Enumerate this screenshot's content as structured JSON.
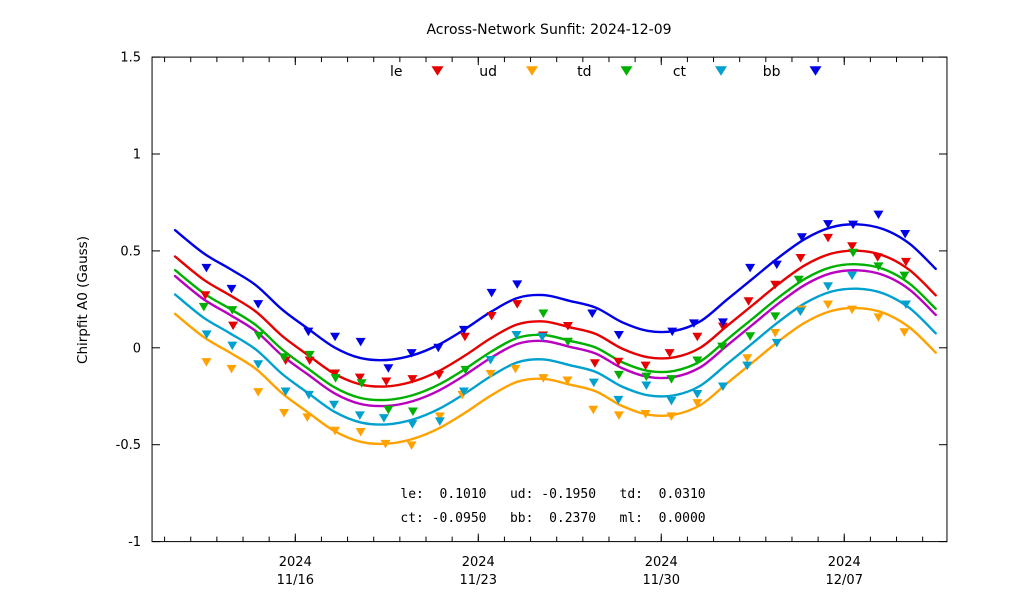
{
  "chart_data": {
    "type": "scatter+line",
    "title": "Across-Network Sunfit: 2024-12-09",
    "ylabel": "Chirpfit A0 (Gauss)",
    "ylim": [
      -1,
      1.5
    ],
    "yticks": [
      "-1",
      "-0.5",
      "0",
      "0.5",
      "1",
      "1.5"
    ],
    "xlim_days": [
      -5.48,
      24.93
    ],
    "x_units": "days relative to the 2024-11-16 tick",
    "x_minor_tick_days": 1,
    "grid": false,
    "legend_position": "top-center-inside",
    "x_major_ticks": [
      {
        "day": 0,
        "top": "2024",
        "bottom": "11/16"
      },
      {
        "day": 7,
        "top": "2024",
        "bottom": "11/23"
      },
      {
        "day": 14,
        "top": "2024",
        "bottom": "11/30"
      },
      {
        "day": 21,
        "top": "2024",
        "bottom": "12/07"
      }
    ],
    "annotation": {
      "line1": "le:  0.1010   ud: -0.1950   td:  0.0310",
      "line2": "ct: -0.0950   bb:  0.2370   ml:  0.0000"
    },
    "fit_offsets": {
      "le": 0.101,
      "ud": -0.195,
      "td": 0.031,
      "ct": -0.095,
      "bb": 0.237,
      "ml": 0.0
    },
    "base_fit_curve": [
      [
        -4.6,
        0.37
      ],
      [
        -3.5,
        0.25
      ],
      [
        -2.5,
        0.17
      ],
      [
        -1.5,
        0.085
      ],
      [
        -0.5,
        -0.04
      ],
      [
        0.5,
        -0.14
      ],
      [
        1.5,
        -0.235
      ],
      [
        2.5,
        -0.29
      ],
      [
        3.5,
        -0.3
      ],
      [
        4.5,
        -0.275
      ],
      [
        5.5,
        -0.22
      ],
      [
        6.5,
        -0.14
      ],
      [
        7.5,
        -0.05
      ],
      [
        8.5,
        0.02
      ],
      [
        9.5,
        0.035
      ],
      [
        10.5,
        0.005
      ],
      [
        11.5,
        -0.03
      ],
      [
        12.5,
        -0.105
      ],
      [
        13.5,
        -0.15
      ],
      [
        14.5,
        -0.15
      ],
      [
        15.5,
        -0.1
      ],
      [
        16.5,
        0.01
      ],
      [
        17.5,
        0.12
      ],
      [
        18.5,
        0.23
      ],
      [
        19.5,
        0.325
      ],
      [
        20.5,
        0.385
      ],
      [
        21.5,
        0.4
      ],
      [
        22.5,
        0.375
      ],
      [
        23.5,
        0.3
      ],
      [
        24.5,
        0.17
      ]
    ],
    "series": [
      {
        "name": "le",
        "color": "#e60000",
        "marker": "triangle-down",
        "points": [
          [
            -3.44,
            0.27
          ],
          [
            -2.38,
            0.113
          ],
          [
            -0.37,
            -0.067
          ],
          [
            0.55,
            -0.067
          ],
          [
            1.52,
            -0.134
          ],
          [
            2.47,
            -0.155
          ],
          [
            3.48,
            -0.175
          ],
          [
            4.48,
            -0.163
          ],
          [
            5.5,
            -0.141
          ],
          [
            6.49,
            0.056
          ],
          [
            7.51,
            0.163
          ],
          [
            8.49,
            0.224
          ],
          [
            9.48,
            0.062
          ],
          [
            10.43,
            0.111
          ],
          [
            11.46,
            -0.081
          ],
          [
            12.36,
            -0.073
          ],
          [
            13.4,
            -0.093
          ],
          [
            14.32,
            -0.029
          ],
          [
            15.38,
            0.056
          ],
          [
            16.36,
            0.108
          ],
          [
            17.34,
            0.239
          ],
          [
            18.36,
            0.324
          ],
          [
            19.33,
            0.462
          ],
          [
            20.38,
            0.566
          ],
          [
            21.3,
            0.523
          ],
          [
            22.28,
            0.466
          ],
          [
            23.36,
            0.442
          ]
        ]
      },
      {
        "name": "ud",
        "color": "#ffa200",
        "marker": "triangle-down",
        "points": [
          [
            -3.4,
            -0.075
          ],
          [
            -2.44,
            -0.11
          ],
          [
            -1.42,
            -0.23
          ],
          [
            -0.43,
            -0.338
          ],
          [
            0.46,
            -0.36
          ],
          [
            1.52,
            -0.429
          ],
          [
            2.5,
            -0.436
          ],
          [
            3.45,
            -0.497
          ],
          [
            4.45,
            -0.505
          ],
          [
            5.53,
            -0.355
          ],
          [
            6.39,
            -0.244
          ],
          [
            7.47,
            -0.136
          ],
          [
            8.42,
            -0.11
          ],
          [
            9.49,
            -0.158
          ],
          [
            10.41,
            -0.17
          ],
          [
            11.4,
            -0.321
          ],
          [
            12.38,
            -0.35
          ],
          [
            13.4,
            -0.343
          ],
          [
            14.39,
            -0.355
          ],
          [
            15.38,
            -0.287
          ],
          [
            17.29,
            -0.055
          ],
          [
            18.36,
            0.076
          ],
          [
            19.38,
            0.196
          ],
          [
            20.38,
            0.222
          ],
          [
            21.3,
            0.196
          ],
          [
            22.31,
            0.156
          ],
          [
            23.3,
            0.079
          ]
        ]
      },
      {
        "name": "td",
        "color": "#00b000",
        "marker": "triangle-down",
        "points": [
          [
            -3.5,
            0.21
          ],
          [
            -2.41,
            0.193
          ],
          [
            -1.39,
            0.061
          ],
          [
            -0.43,
            -0.05
          ],
          [
            0.55,
            -0.038
          ],
          [
            1.54,
            -0.158
          ],
          [
            2.54,
            -0.184
          ],
          [
            3.56,
            -0.321
          ],
          [
            4.5,
            -0.33
          ],
          [
            6.51,
            -0.115
          ],
          [
            9.49,
            0.176
          ],
          [
            10.43,
            0.03
          ],
          [
            12.38,
            -0.141
          ],
          [
            13.43,
            -0.15
          ],
          [
            14.39,
            -0.163
          ],
          [
            15.38,
            -0.067
          ],
          [
            16.33,
            0.005
          ],
          [
            17.4,
            0.058
          ],
          [
            18.36,
            0.161
          ],
          [
            19.26,
            0.35
          ],
          [
            21.34,
            0.489
          ],
          [
            22.31,
            0.419
          ],
          [
            23.3,
            0.371
          ]
        ]
      },
      {
        "name": "ct",
        "color": "#00a0cf",
        "marker": "triangle-down",
        "points": [
          [
            -3.39,
            0.068
          ],
          [
            -2.41,
            0.01
          ],
          [
            -1.42,
            -0.086
          ],
          [
            -0.37,
            -0.227
          ],
          [
            0.52,
            -0.244
          ],
          [
            1.48,
            -0.295
          ],
          [
            2.47,
            -0.35
          ],
          [
            3.39,
            -0.364
          ],
          [
            4.48,
            -0.395
          ],
          [
            5.53,
            -0.381
          ],
          [
            6.45,
            -0.227
          ],
          [
            7.47,
            -0.064
          ],
          [
            8.46,
            0.065
          ],
          [
            9.44,
            0.055
          ],
          [
            11.42,
            -0.181
          ],
          [
            12.36,
            -0.27
          ],
          [
            13.43,
            -0.196
          ],
          [
            14.39,
            -0.275
          ],
          [
            15.38,
            -0.24
          ],
          [
            16.36,
            -0.201
          ],
          [
            17.29,
            -0.093
          ],
          [
            18.42,
            0.024
          ],
          [
            19.32,
            0.186
          ],
          [
            20.38,
            0.316
          ],
          [
            21.3,
            0.371
          ],
          [
            23.36,
            0.222
          ]
        ]
      },
      {
        "name": "bb",
        "color": "#0000e6",
        "marker": "triangle-down",
        "points": [
          [
            -3.4,
            0.411
          ],
          [
            -2.44,
            0.303
          ],
          [
            -1.42,
            0.224
          ],
          [
            0.5,
            0.082
          ],
          [
            1.52,
            0.056
          ],
          [
            2.5,
            0.029
          ],
          [
            3.56,
            -0.107
          ],
          [
            4.45,
            -0.029
          ],
          [
            5.47,
            -0.001
          ],
          [
            6.45,
            0.091
          ],
          [
            7.51,
            0.282
          ],
          [
            8.49,
            0.326
          ],
          [
            11.36,
            0.176
          ],
          [
            12.38,
            0.065
          ],
          [
            14.42,
            0.082
          ],
          [
            15.25,
            0.125
          ],
          [
            16.36,
            0.13
          ],
          [
            17.4,
            0.411
          ],
          [
            18.42,
            0.428
          ],
          [
            19.38,
            0.569
          ],
          [
            20.38,
            0.637
          ],
          [
            21.34,
            0.634
          ],
          [
            22.31,
            0.686
          ],
          [
            23.33,
            0.586
          ]
        ]
      },
      {
        "name": "ml",
        "color": "#b800c0",
        "marker": "none",
        "points": []
      }
    ],
    "legend": [
      {
        "label": "le",
        "color": "#e60000"
      },
      {
        "label": "ud",
        "color": "#ffa200"
      },
      {
        "label": "td",
        "color": "#00b000"
      },
      {
        "label": "ct",
        "color": "#00a0cf"
      },
      {
        "label": "bb",
        "color": "#0000e6"
      }
    ]
  }
}
